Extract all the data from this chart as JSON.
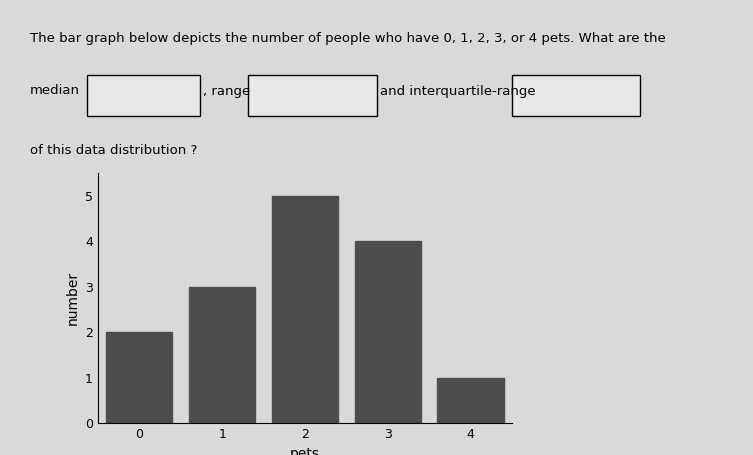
{
  "categories": [
    0,
    1,
    2,
    3,
    4
  ],
  "values": [
    2,
    3,
    5,
    4,
    1
  ],
  "bar_color": "#4d4d4d",
  "xlabel": "pets",
  "ylabel": "number",
  "ylim": [
    0,
    5.5
  ],
  "xlim": [
    -0.5,
    4.5
  ],
  "yticks": [
    0,
    1,
    2,
    3,
    4,
    5
  ],
  "xticks": [
    0,
    1,
    2,
    3,
    4
  ],
  "title_text": "The bar graph below depicts the number of people who have 0, 1, 2, 3, or 4 pets. What are the",
  "line2_text": "median",
  "range_text": ", range",
  "interquartile_text": "and interquartile-range",
  "line3_text": "of this data distribution ?",
  "background_color": "#d9d9d9",
  "fig_background": "#c8c8c8"
}
